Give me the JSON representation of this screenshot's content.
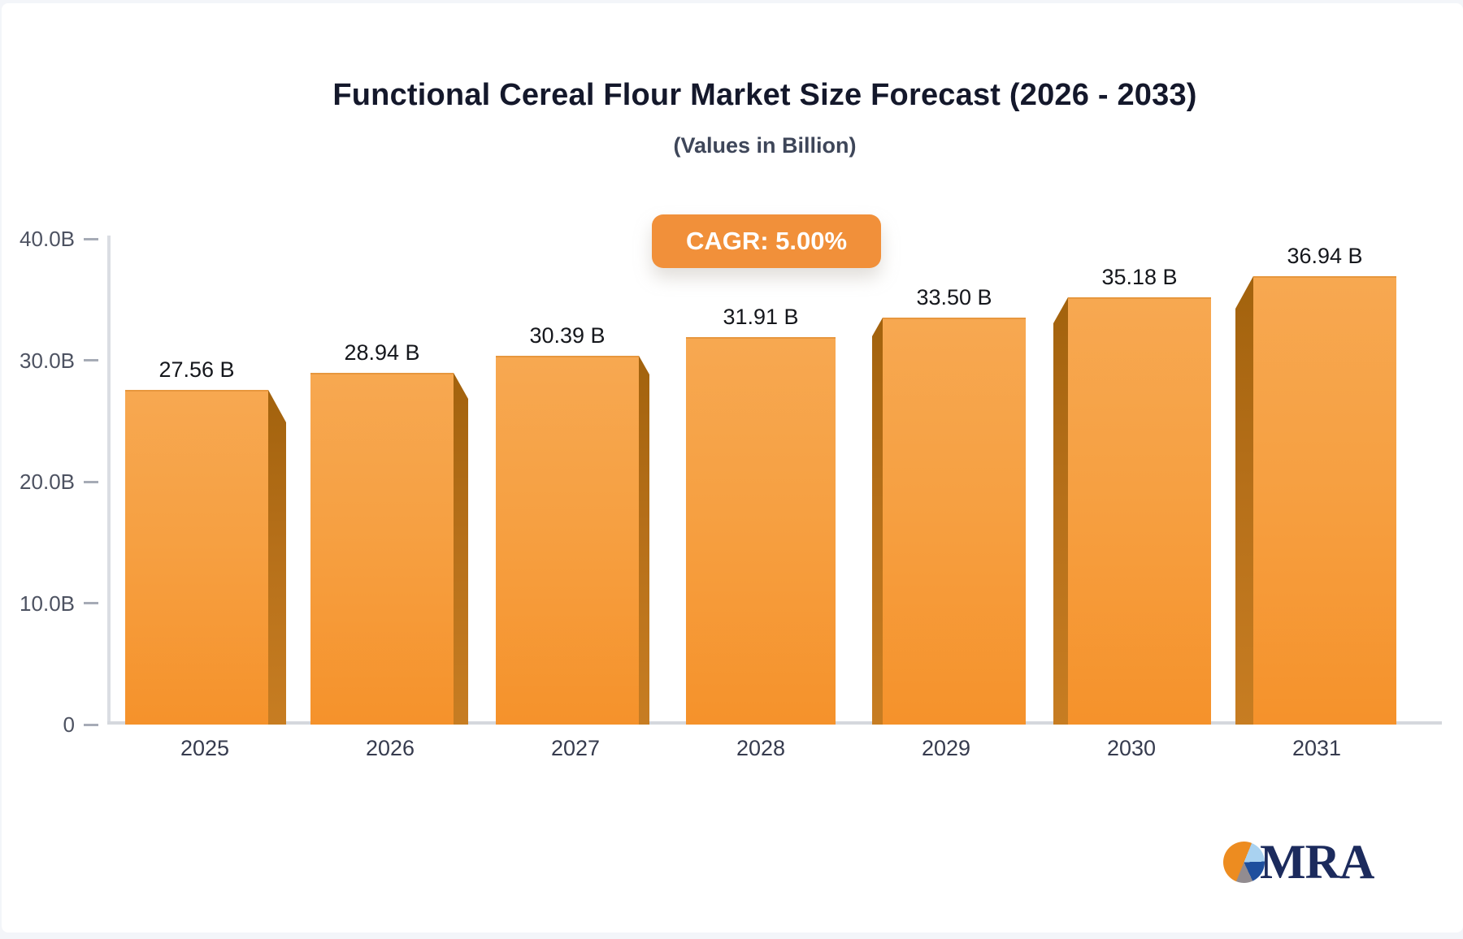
{
  "header": {
    "title": "Functional Cereal Flour Market Size Forecast (2026 - 2033)",
    "subtitle": "(Values in Billion)"
  },
  "badge": {
    "label": "CAGR: 5.00%",
    "color": "#f1903a"
  },
  "chart_data": {
    "type": "bar",
    "title": "Functional Cereal Flour Market Size Forecast (2026 - 2033)",
    "subtitle": "(Values in Billion)",
    "categories": [
      "2025",
      "2026",
      "2027",
      "2028",
      "2029",
      "2030",
      "2031"
    ],
    "values": [
      27.56,
      28.94,
      30.39,
      31.91,
      33.5,
      35.18,
      36.94
    ],
    "value_labels": [
      "27.56 B",
      "28.94 B",
      "30.39 B",
      "31.91 B",
      "33.50 B",
      "35.18 B",
      "36.94 B"
    ],
    "xlabel": "",
    "ylabel": "",
    "ylim": [
      0,
      40
    ],
    "ytick_values": [
      40,
      30,
      20,
      10,
      0
    ],
    "ytick_labels": [
      "40.0B",
      "30.0B",
      "20.0B",
      "10.0B",
      "0"
    ],
    "grid": false,
    "legend": false,
    "bar_color": "#f6a042",
    "bar_side_color": "#b56f19",
    "annotation": "CAGR: 5.00%"
  },
  "logo": {
    "text": "MRA",
    "pie_colors": {
      "orange": "#ed8c20",
      "light_blue": "#a9d2f0",
      "dark_blue": "#1e4f9d",
      "gray": "#928c90"
    }
  }
}
